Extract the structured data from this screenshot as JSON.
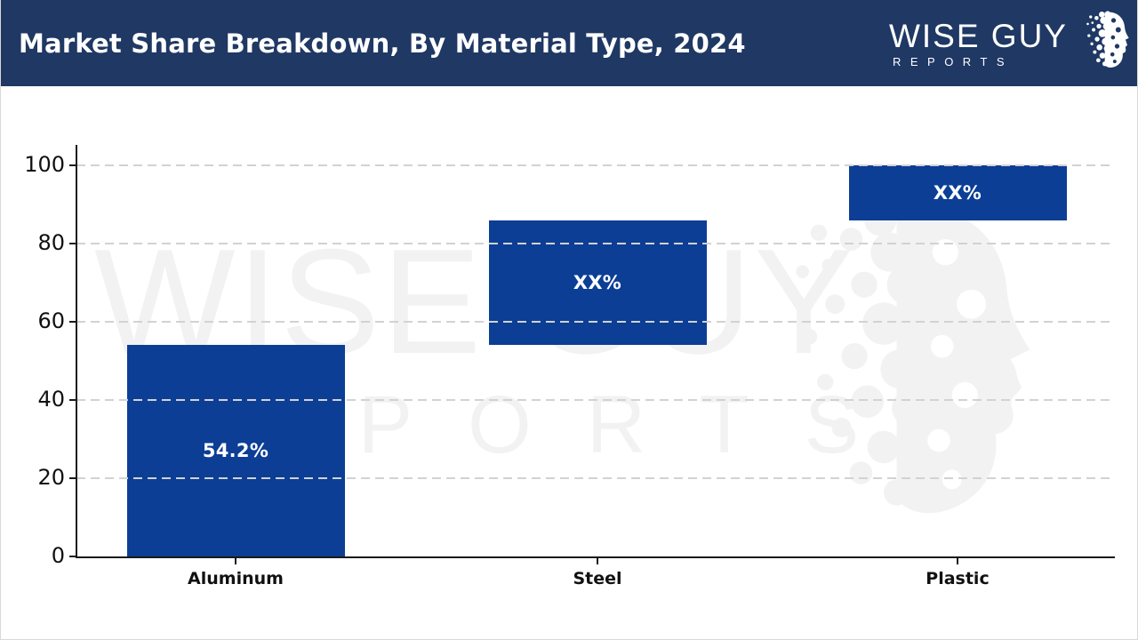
{
  "header": {
    "title": "Market Share Breakdown, By Material Type, 2024",
    "bg_color": "#1f3864",
    "logo": {
      "line1": "WISE GUY",
      "line2": "REPORTS"
    }
  },
  "watermark": {
    "line1": "WISE GUY",
    "line2": "REPORTS"
  },
  "chart_data": {
    "type": "bar",
    "subtype": "waterfall",
    "title": "Market Share Breakdown, By Material Type, 2024",
    "categories": [
      "Aluminum",
      "Steel",
      "Plastic"
    ],
    "segments": [
      {
        "category": "Aluminum",
        "start": 0,
        "end": 54.2,
        "label": "54.2%"
      },
      {
        "category": "Steel",
        "start": 54.2,
        "end": 85.8,
        "label": "XX%"
      },
      {
        "category": "Plastic",
        "start": 85.8,
        "end": 100,
        "label": "XX%"
      }
    ],
    "y_ticks": [
      0,
      20,
      40,
      60,
      80,
      100
    ],
    "ylim": [
      0,
      100
    ],
    "xlabel": "",
    "ylabel": "",
    "grid": "horizontal-dashed",
    "legend": "none",
    "bar_color": "#0c3e96",
    "grid_color": "#d2d2d2",
    "axis_color": "#1a1a1a",
    "label_color": "#ffffff"
  }
}
